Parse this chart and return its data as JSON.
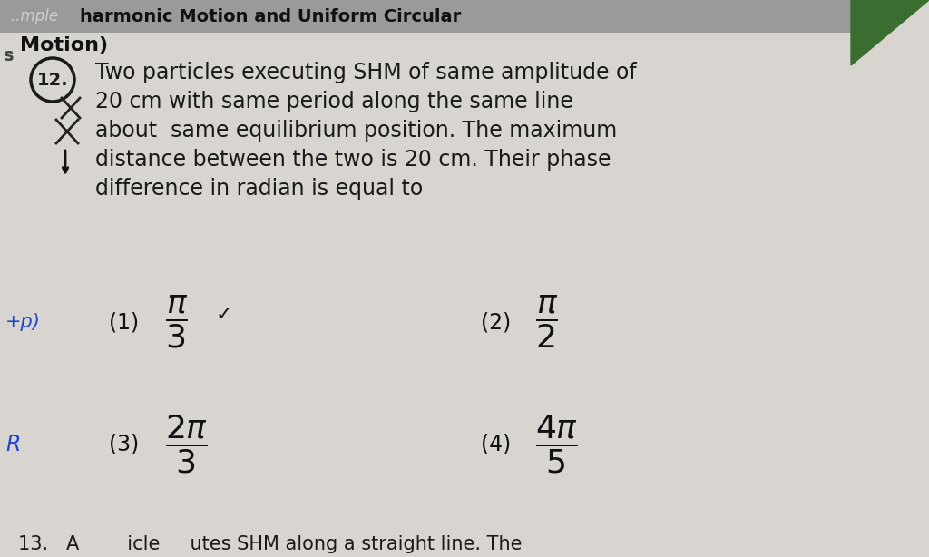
{
  "background_color": "#d8d5d0",
  "page_color": "#e8e5e0",
  "header_bg": "#a0a0a0",
  "header_text_dark": "harmonic Motion and Uniform Circular",
  "header_text_light": "..mple ",
  "motion_label": "Motion)",
  "left_letter": "s",
  "question_number": "12.",
  "question_text_lines": [
    "Two particles executing SHM of same amplitude of",
    "20 cm with same period along the same line",
    "about  same equilibrium position. The maximum",
    "distance between the two is 20 cm. Their phase",
    "difference in radian is equal to"
  ],
  "green_triangle_color": "#3a6e30",
  "text_color": "#1a1a1a",
  "option_color": "#111111",
  "annotation_color": "#2244cc",
  "side_note1": "+p)",
  "side_note2": "R",
  "bottom_text": "13.   A        icle     utes SHM along a straight line. The",
  "opt1_num": "(1)",
  "opt1_frac": "$\\dfrac{\\pi}{3}$",
  "opt2_num": "(2)",
  "opt2_frac": "$\\dfrac{\\pi}{2}$",
  "opt3_num": "(3)",
  "opt3_frac": "$\\dfrac{2\\pi}{3}$",
  "opt4_num": "(4)",
  "opt4_frac": "$\\dfrac{4\\pi}{5}$",
  "checkmark": "✓"
}
